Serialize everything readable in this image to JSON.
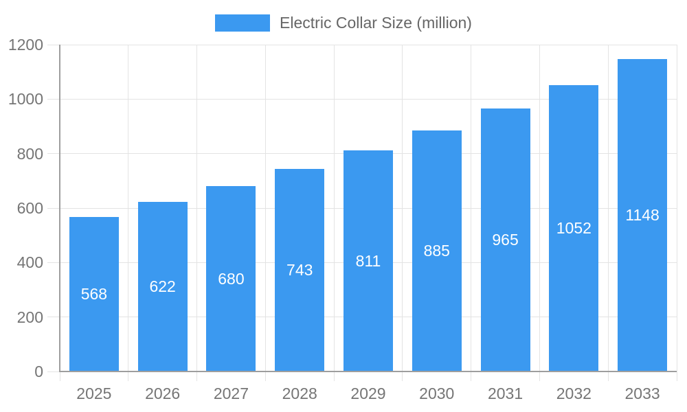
{
  "chart_data": {
    "type": "bar",
    "title": "",
    "series_name": "Electric Collar Size (million)",
    "categories": [
      "2025",
      "2026",
      "2027",
      "2028",
      "2029",
      "2030",
      "2031",
      "2032",
      "2033"
    ],
    "values": [
      568,
      622,
      680,
      743,
      811,
      885,
      965,
      1052,
      1148
    ],
    "value_labels": [
      "568",
      "622",
      "680",
      "743",
      "811",
      "885",
      "965",
      "1052",
      "1148"
    ],
    "xlabel": "",
    "ylabel": "",
    "ylim": [
      0,
      1200
    ],
    "y_ticks": [
      0,
      200,
      400,
      600,
      800,
      1000,
      1200
    ],
    "y_tick_labels": [
      "0",
      "200",
      "400",
      "600",
      "800",
      "1000",
      "1200"
    ],
    "grid": true,
    "legend_position": "top",
    "colors": {
      "bar": "#3b99f0",
      "grid": "#e3e3e3",
      "axis": "#9e9e9e",
      "axis_text": "#757575",
      "legend_text": "#666666",
      "value_text": "#ffffff",
      "background": "#ffffff"
    }
  }
}
